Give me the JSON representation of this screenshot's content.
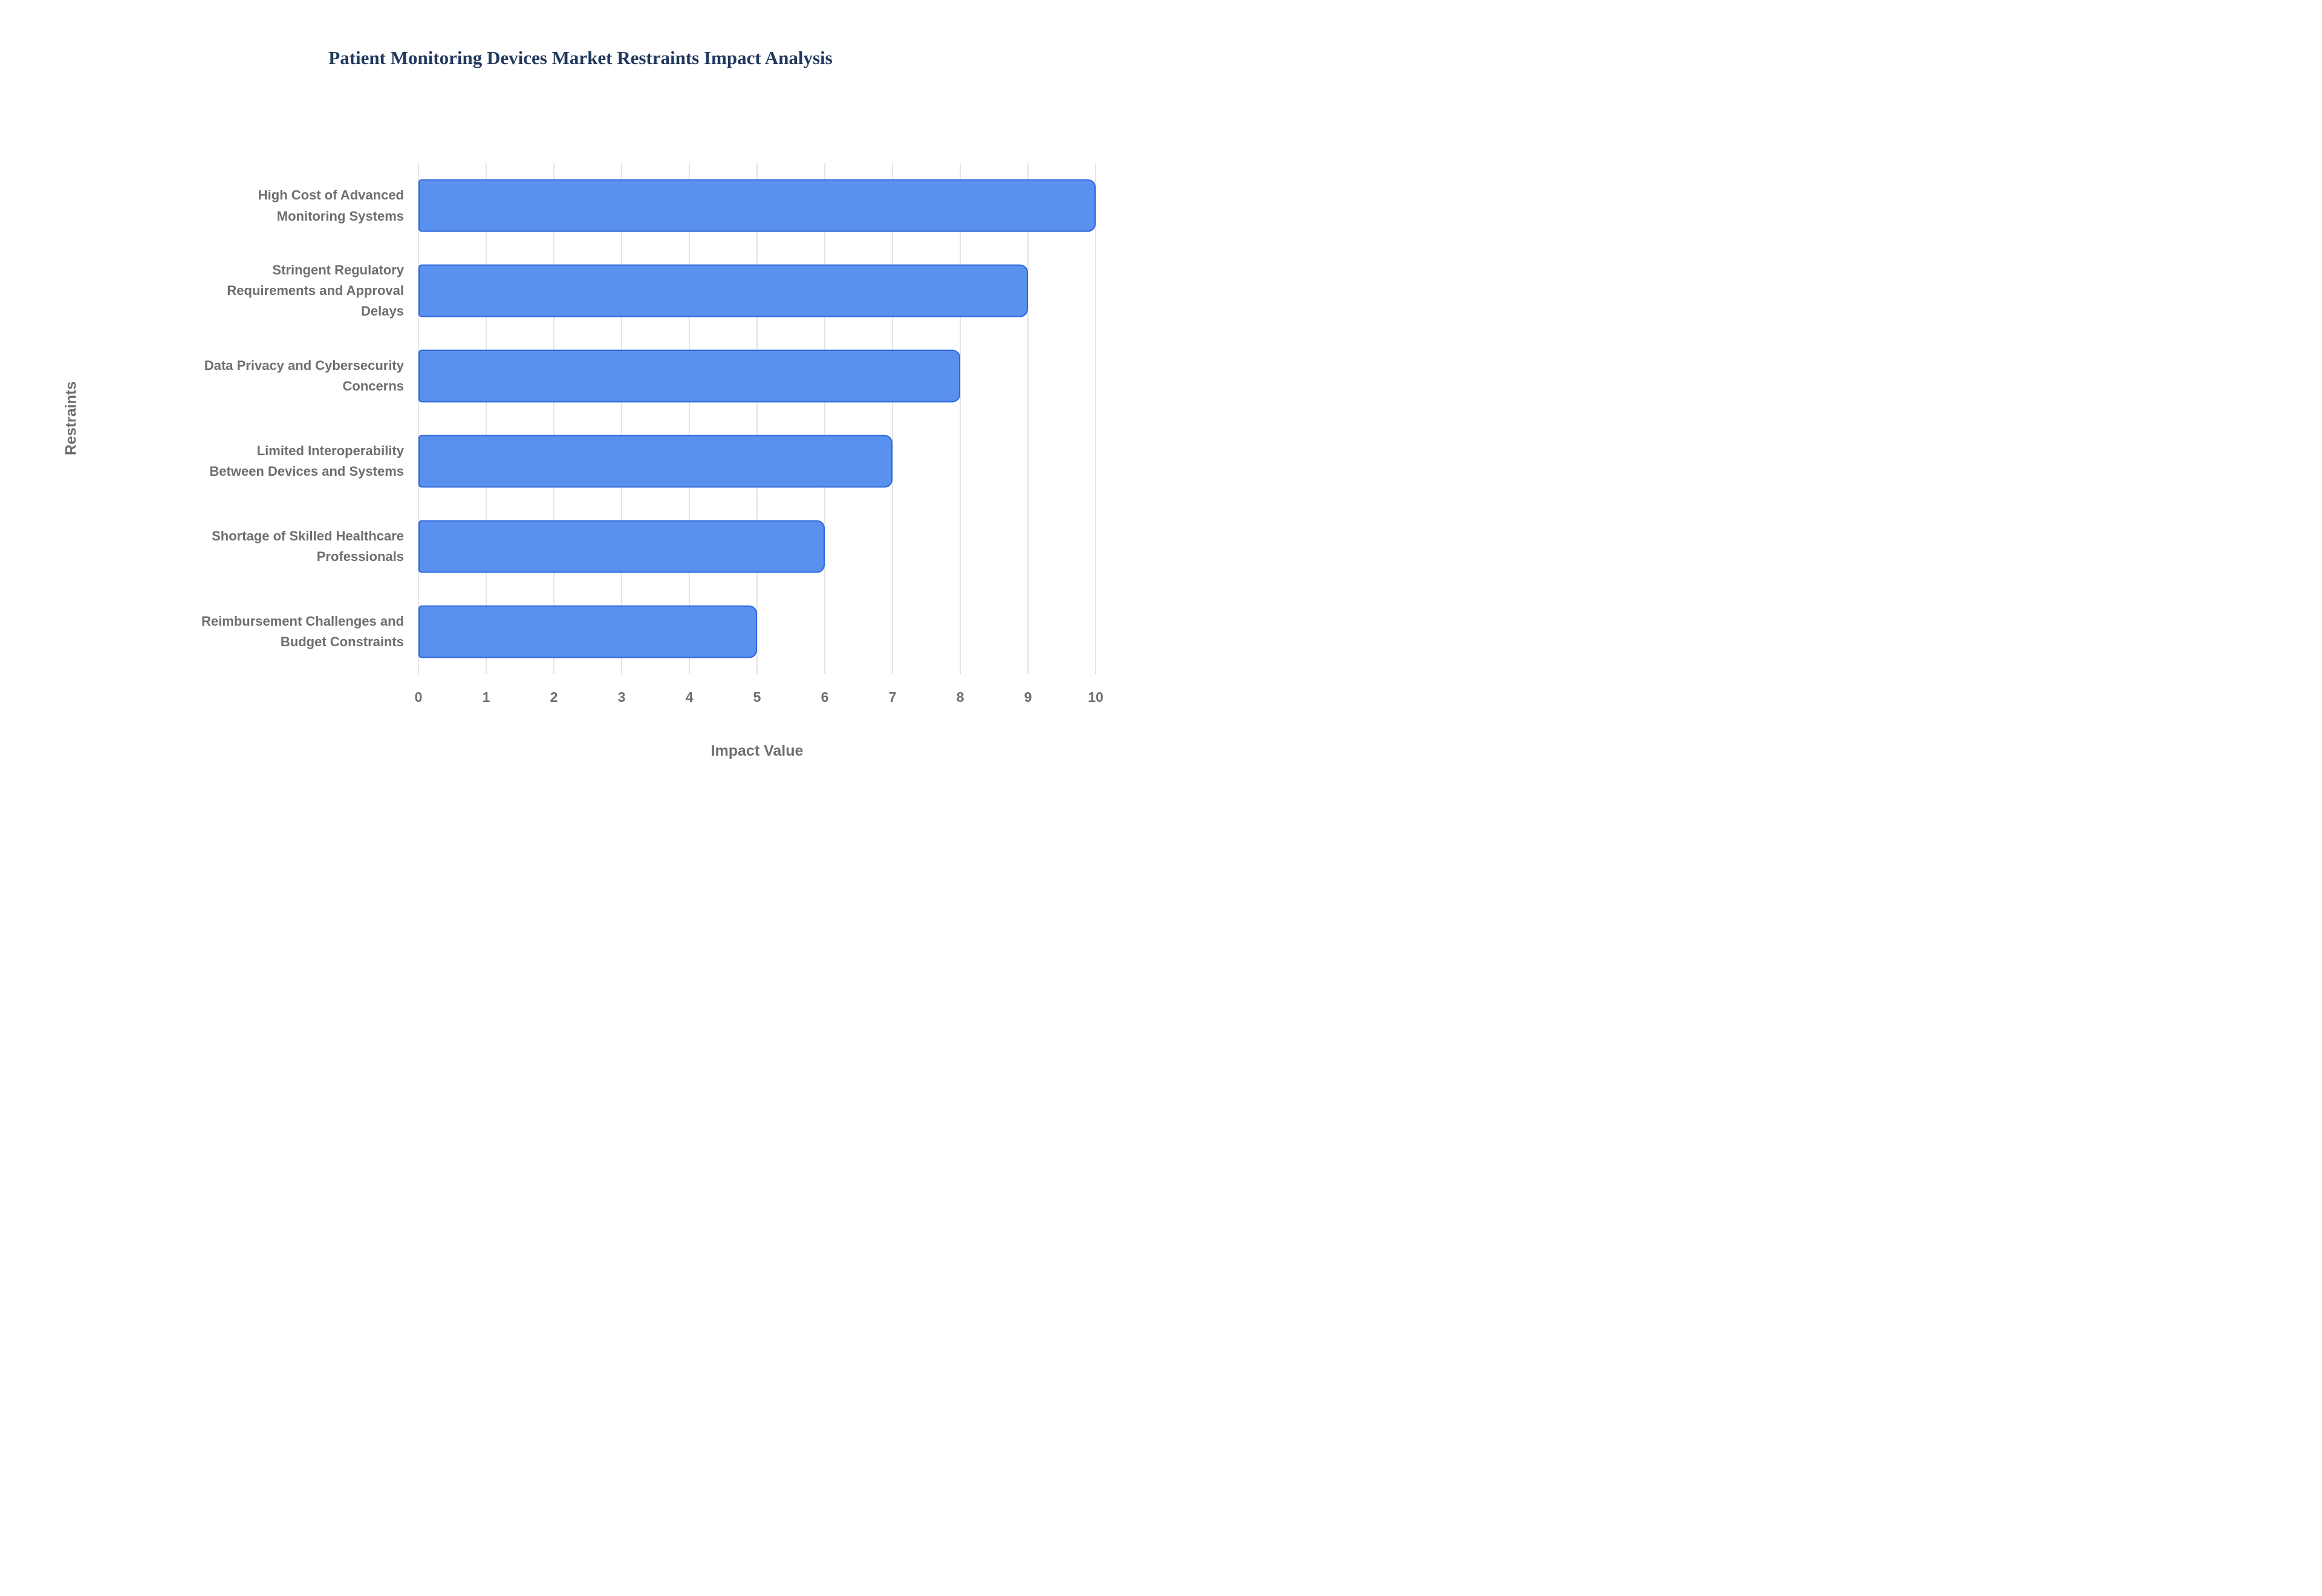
{
  "chart_data": {
    "type": "bar",
    "orientation": "horizontal",
    "title": "Patient Monitoring Devices Market Restraints Impact Analysis",
    "xlabel": "Impact Value",
    "ylabel": "Restraints",
    "categories": [
      "High Cost of Advanced\nMonitoring Systems",
      "Stringent Regulatory\nRequirements and Approval\nDelays",
      "Data Privacy and Cybersecurity\nConcerns",
      "Limited Interoperability\nBetween Devices and Systems",
      "Shortage of Skilled Healthcare\nProfessionals",
      "Reimbursement Challenges and\nBudget Constraints"
    ],
    "values": [
      10,
      9,
      8,
      7,
      6,
      5
    ],
    "xlim": [
      0,
      10
    ],
    "xticks": [
      0,
      1,
      2,
      3,
      4,
      5,
      6,
      7,
      8,
      9,
      10
    ],
    "grid": true,
    "legend": false,
    "colors": {
      "bar_fill": "#5b91ee",
      "bar_border": "#2c66df",
      "grid_line": "#e4e4e4",
      "title_text": "#22395e",
      "axis_text": "#6e6e6e",
      "background": "#ffffff"
    }
  }
}
